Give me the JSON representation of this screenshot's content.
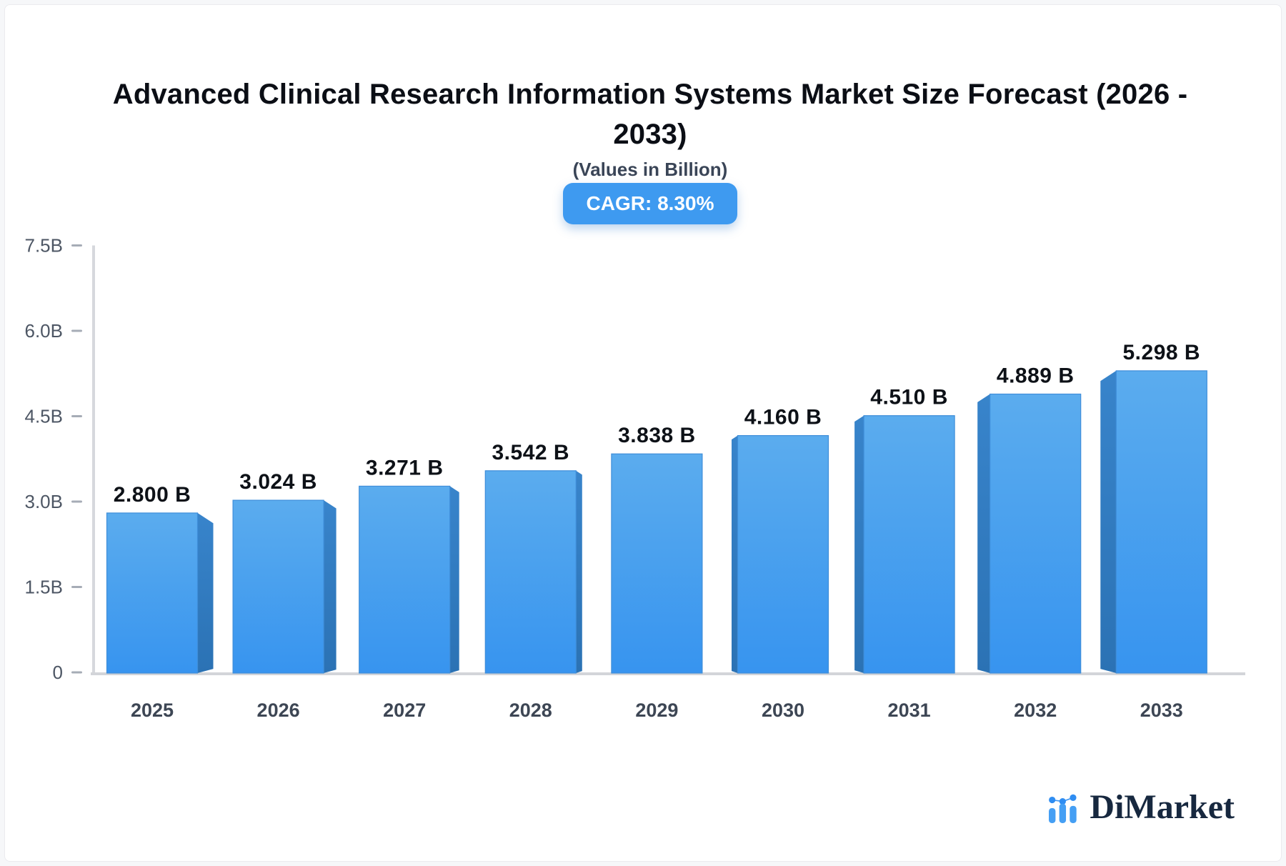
{
  "header": {
    "title_line1": "Advanced Clinical Research Information Systems Market Size Forecast (2026 -",
    "title_line2": "2033)",
    "subtitle": "(Values in Billion)",
    "cagr_badge": "CAGR: 8.30%"
  },
  "chart_data": {
    "type": "bar",
    "title": "Advanced Clinical Research Information Systems Market Size Forecast (2026 - 2033)",
    "subtitle": "(Values in Billion)",
    "cagr": "8.30%",
    "categories": [
      "2025",
      "2026",
      "2027",
      "2028",
      "2029",
      "2030",
      "2031",
      "2032",
      "2033"
    ],
    "values": [
      2.8,
      3.024,
      3.271,
      3.542,
      3.838,
      4.16,
      4.51,
      4.889,
      5.298
    ],
    "value_labels": [
      "2.800 B",
      "3.024 B",
      "3.271 B",
      "3.542 B",
      "3.838 B",
      "4.160 B",
      "4.510 B",
      "4.889 B",
      "5.298 B"
    ],
    "xlabel": "",
    "ylabel": "",
    "y_tick_labels": [
      "0",
      "1.5B",
      "3.0B",
      "4.5B",
      "6.0B",
      "7.5B"
    ],
    "y_tick_values": [
      0,
      1.5,
      3.0,
      4.5,
      6.0,
      7.5
    ],
    "ylim": [
      0,
      7.5
    ],
    "grid": false,
    "legend": false,
    "colors": {
      "bar_front_top": "#5bacee",
      "bar_front_bottom": "#3794ef",
      "bar_front_stroke": "#3f8ed9",
      "bar_side_top": "#3884cb",
      "bar_side_bottom": "#2b72b4",
      "axis_line": "#d6d8dd",
      "baseline": "#d3d5d9",
      "tick_dash": "#a6acb6",
      "y_label": "#4d5664",
      "x_label": "#3d4654",
      "value_label": "#0d1117"
    }
  },
  "footer": {
    "brand": "DiMarket"
  }
}
